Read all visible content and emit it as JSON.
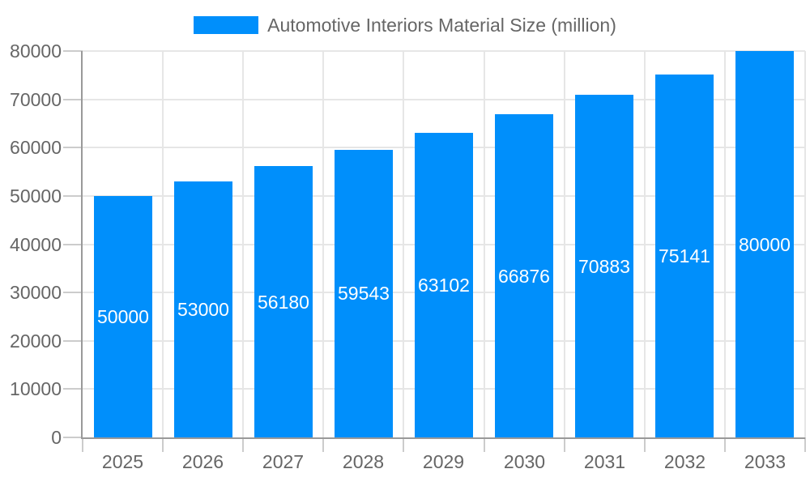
{
  "chart_data": {
    "type": "bar",
    "title": "Automotive Interiors Material Size (million)",
    "categories": [
      "2025",
      "2026",
      "2027",
      "2028",
      "2029",
      "2030",
      "2031",
      "2032",
      "2033"
    ],
    "values": [
      50000,
      53000,
      56180,
      59543,
      63102,
      66876,
      70883,
      75141,
      80000
    ],
    "value_labels": [
      "50000",
      "53000",
      "56180",
      "59543",
      "63102",
      "66876",
      "70883",
      "75141",
      "80000"
    ],
    "y_ticks": [
      0,
      10000,
      20000,
      30000,
      40000,
      50000,
      60000,
      70000,
      80000
    ],
    "y_tick_labels": [
      "0",
      "10000",
      "20000",
      "30000",
      "40000",
      "50000",
      "60000",
      "70000",
      "80000"
    ],
    "ylim": [
      0,
      80000
    ],
    "xlabel": "",
    "ylabel": "",
    "grid": "both",
    "legend_position": "top",
    "colors": {
      "bar": "#008ffb",
      "grid": "#e6e6e6",
      "tick": "#cccccc",
      "axis": "#999999",
      "text": "#666666",
      "value_label": "#ffffff"
    }
  }
}
